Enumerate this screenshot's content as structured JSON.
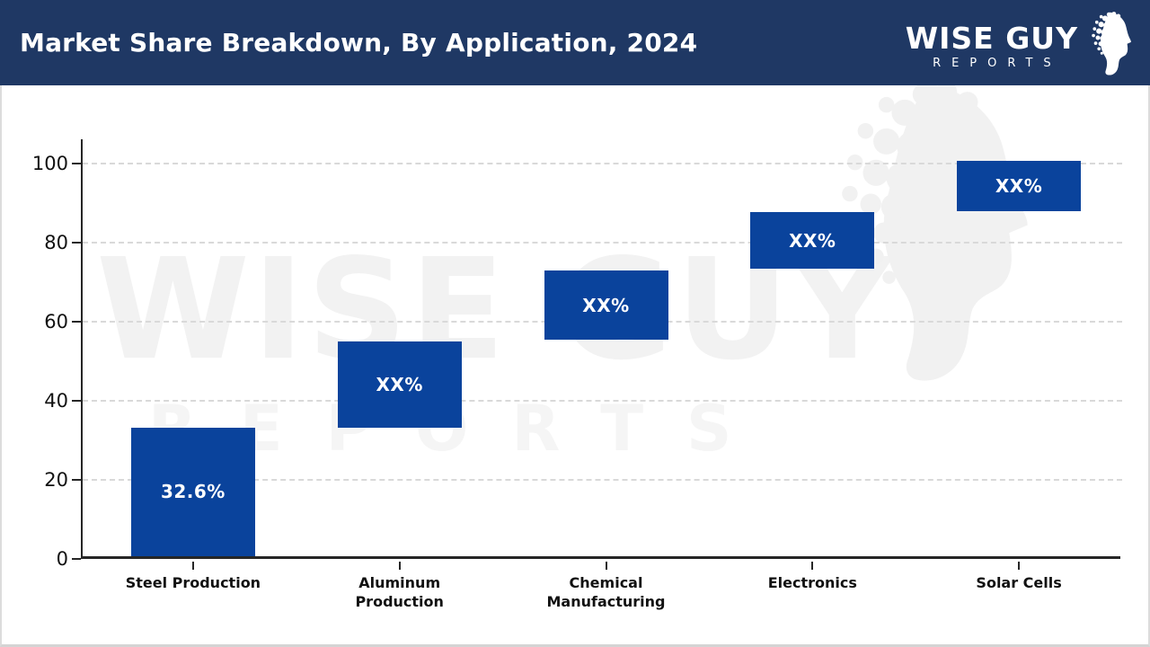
{
  "header": {
    "title": "Market Share Breakdown, By Application, 2024",
    "background_color": "#1f3864",
    "logo": {
      "wordmark": "WISE GUY",
      "subtext": "REPORTS"
    }
  },
  "watermark": {
    "wordmark": "WISE GUY",
    "subtext": "REPORTS"
  },
  "chart_data": {
    "type": "bar",
    "subtype": "waterfall",
    "title": "Market Share Breakdown, By Application, 2024",
    "categories": [
      "Steel Production",
      "Aluminum Production",
      "Chemical Manufacturing",
      "Electronics",
      "Solar Cells"
    ],
    "category_display": [
      "Steel Production",
      "Aluminum\nProduction",
      "Chemical\nManufacturing",
      "Electronics",
      "Solar Cells"
    ],
    "segments": [
      {
        "category": "Steel Production",
        "start": 0,
        "end": 32.6,
        "label": "32.6%"
      },
      {
        "category": "Aluminum Production",
        "start": 32.6,
        "end": 54.4,
        "label": "XX%"
      },
      {
        "category": "Chemical Manufacturing",
        "start": 54.7,
        "end": 72.3,
        "label": "XX%"
      },
      {
        "category": "Electronics",
        "start": 72.7,
        "end": 87.0,
        "label": "XX%"
      },
      {
        "category": "Solar Cells",
        "start": 87.3,
        "end": 100.0,
        "label": "XX%"
      }
    ],
    "y_ticks": [
      0,
      20,
      40,
      60,
      80,
      100
    ],
    "ylim": [
      0,
      106
    ],
    "xlabel": "",
    "ylabel": "",
    "legend": "none",
    "grid": "horizontal-dashed",
    "bar_color": "#0a439c",
    "bar_label_color": "#ffffff",
    "axis_color": "#262626",
    "gridline_color": "#d9d9d9"
  }
}
